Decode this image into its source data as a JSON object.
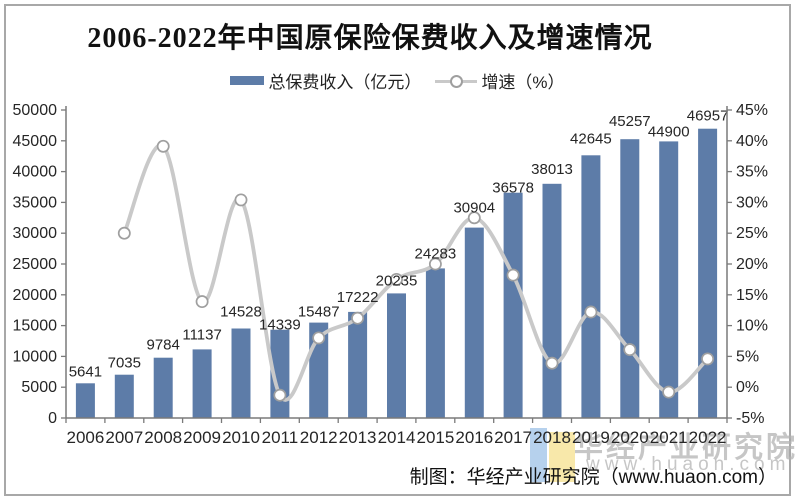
{
  "title": "2006-2022年中国原保险保费收入及增速情况",
  "legend": {
    "bar_label": "总保费收入（亿元）",
    "line_label": "增速（%）"
  },
  "chart_data": {
    "type": "bar+line",
    "title": "2006-2022年中国原保险保费收入及增速情况",
    "categories": [
      "2006",
      "2007",
      "2008",
      "2009",
      "2010",
      "2011",
      "2012",
      "2013",
      "2014",
      "2015",
      "2016",
      "2017",
      "2018",
      "2019",
      "2020",
      "2021",
      "2022"
    ],
    "series": [
      {
        "name": "总保费收入（亿元）",
        "type": "bar",
        "axis": "left",
        "values": [
          5641,
          7035,
          9784,
          11137,
          14528,
          14339,
          15487,
          17222,
          20235,
          24283,
          30904,
          36578,
          38013,
          42645,
          45257,
          44900,
          46957
        ]
      },
      {
        "name": "增速（%）",
        "type": "line",
        "axis": "right",
        "values": [
          null,
          25.0,
          39.1,
          13.9,
          30.4,
          -1.3,
          8.0,
          11.2,
          17.5,
          20.0,
          27.5,
          18.2,
          3.9,
          12.2,
          6.1,
          -0.8,
          4.6
        ]
      }
    ],
    "left_axis": {
      "min": 0,
      "max": 50000,
      "step": 5000,
      "tick_labels": [
        "0",
        "5000",
        "10000",
        "15000",
        "20000",
        "25000",
        "30000",
        "35000",
        "40000",
        "45000",
        "50000"
      ]
    },
    "right_axis": {
      "min": -5,
      "max": 45,
      "step": 5,
      "tick_labels": [
        "-5%",
        "0%",
        "5%",
        "10%",
        "15%",
        "20%",
        "25%",
        "30%",
        "35%",
        "40%",
        "45%"
      ]
    },
    "grid": false,
    "legend_position": "top",
    "bar_labels_shown": true
  },
  "watermark": {
    "brand_text": "华经产业研究院",
    "brand_url": "www.huaon.com"
  },
  "credit": "制图：华经产业研究院（www.huaon.com）",
  "colors": {
    "bar": "#5d7ca8",
    "line": "#c9c9c9",
    "marker_fill": "#ffffff",
    "marker_stroke": "#9f9f9f",
    "axis": "#7a7a7a",
    "year_highlight": "#3a6db0",
    "watermark_blue": "#a9c9ea",
    "watermark_yellow": "#f7e49b",
    "watermark_text": "#b3b3b3"
  }
}
